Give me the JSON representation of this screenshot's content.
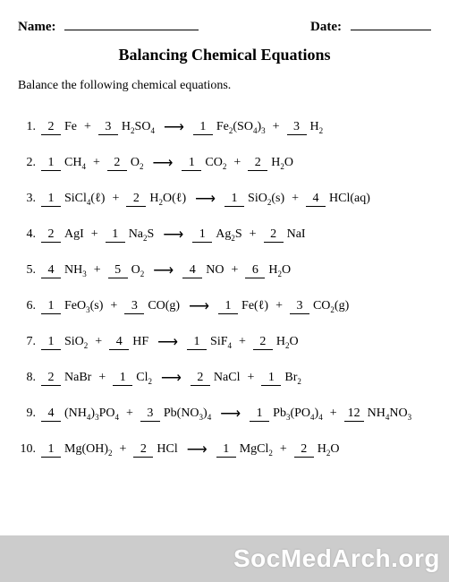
{
  "header": {
    "name_label": "Name:",
    "date_label": "Date:"
  },
  "title": "Balancing Chemical Equations",
  "instruction": "Balance the following chemical equations.",
  "arrow_glyph": "⟶",
  "plus_glyph": "+",
  "equations": [
    {
      "num": "1.",
      "lhs": [
        {
          "c": "2",
          "f": "Fe"
        },
        {
          "c": "3",
          "f": "H<sub>2</sub>SO<sub>4</sub>"
        }
      ],
      "rhs": [
        {
          "c": "1",
          "f": "Fe<sub>2</sub>(SO<sub>4</sub>)<sub>3</sub>"
        },
        {
          "c": "3",
          "f": "H<sub>2</sub>"
        }
      ]
    },
    {
      "num": "2.",
      "lhs": [
        {
          "c": "1",
          "f": "CH<sub>4</sub>"
        },
        {
          "c": "2",
          "f": "O<sub>2</sub>"
        }
      ],
      "rhs": [
        {
          "c": "1",
          "f": "CO<sub>2</sub>"
        },
        {
          "c": "2",
          "f": "H<sub>2</sub>O"
        }
      ]
    },
    {
      "num": "3.",
      "lhs": [
        {
          "c": "1",
          "f": "SiCl<sub>4</sub>(ℓ)"
        },
        {
          "c": "2",
          "f": "H<sub>2</sub>O(ℓ)"
        }
      ],
      "rhs": [
        {
          "c": "1",
          "f": "SiO<sub>2</sub>(s)"
        },
        {
          "c": "4",
          "f": "HCl(aq)"
        }
      ]
    },
    {
      "num": "4.",
      "lhs": [
        {
          "c": "2",
          "f": "AgI"
        },
        {
          "c": "1",
          "f": "Na<sub>2</sub>S"
        }
      ],
      "rhs": [
        {
          "c": "1",
          "f": "Ag<sub>2</sub>S"
        },
        {
          "c": "2",
          "f": "NaI"
        }
      ]
    },
    {
      "num": "5.",
      "lhs": [
        {
          "c": "4",
          "f": "NH<sub>3</sub>"
        },
        {
          "c": "5",
          "f": "O<sub>2</sub>"
        }
      ],
      "rhs": [
        {
          "c": "4",
          "f": "NO"
        },
        {
          "c": "6",
          "f": "H<sub>2</sub>O"
        }
      ]
    },
    {
      "num": "6.",
      "lhs": [
        {
          "c": "1",
          "f": "FeO<sub>3</sub>(s)"
        },
        {
          "c": "3",
          "f": "CO(g)"
        }
      ],
      "rhs": [
        {
          "c": "1",
          "f": "Fe(ℓ)"
        },
        {
          "c": "3",
          "f": "CO<sub>2</sub>(g)"
        }
      ]
    },
    {
      "num": "7.",
      "lhs": [
        {
          "c": "1",
          "f": "SiO<sub>2</sub>"
        },
        {
          "c": "4",
          "f": "HF"
        }
      ],
      "rhs": [
        {
          "c": "1",
          "f": "SiF<sub>4</sub>"
        },
        {
          "c": "2",
          "f": "H<sub>2</sub>O"
        }
      ]
    },
    {
      "num": "8.",
      "lhs": [
        {
          "c": "2",
          "f": "NaBr"
        },
        {
          "c": "1",
          "f": "Cl<sub>2</sub>"
        }
      ],
      "rhs": [
        {
          "c": "2",
          "f": "NaCl"
        },
        {
          "c": "1",
          "f": "Br<sub>2</sub>"
        }
      ]
    },
    {
      "num": "9.",
      "lhs": [
        {
          "c": "4",
          "f": "(NH<sub>4</sub>)<sub>3</sub>PO<sub>4</sub>"
        },
        {
          "c": "3",
          "f": "Pb(NO<sub>3</sub>)<sub>4</sub>"
        }
      ],
      "rhs": [
        {
          "c": "1",
          "f": "Pb<sub>3</sub>(PO<sub>4</sub>)<sub>4</sub>"
        },
        {
          "c": "12",
          "f": "NH<sub>4</sub>NO<sub>3</sub>"
        }
      ]
    },
    {
      "num": "10.",
      "lhs": [
        {
          "c": "1",
          "f": "Mg(OH)<sub>2</sub>"
        },
        {
          "c": "2",
          "f": "HCl"
        }
      ],
      "rhs": [
        {
          "c": "1",
          "f": "MgCl<sub>2</sub>"
        },
        {
          "c": "2",
          "f": "H<sub>2</sub>O"
        }
      ]
    }
  ],
  "watermark": "SocMedArch.org"
}
